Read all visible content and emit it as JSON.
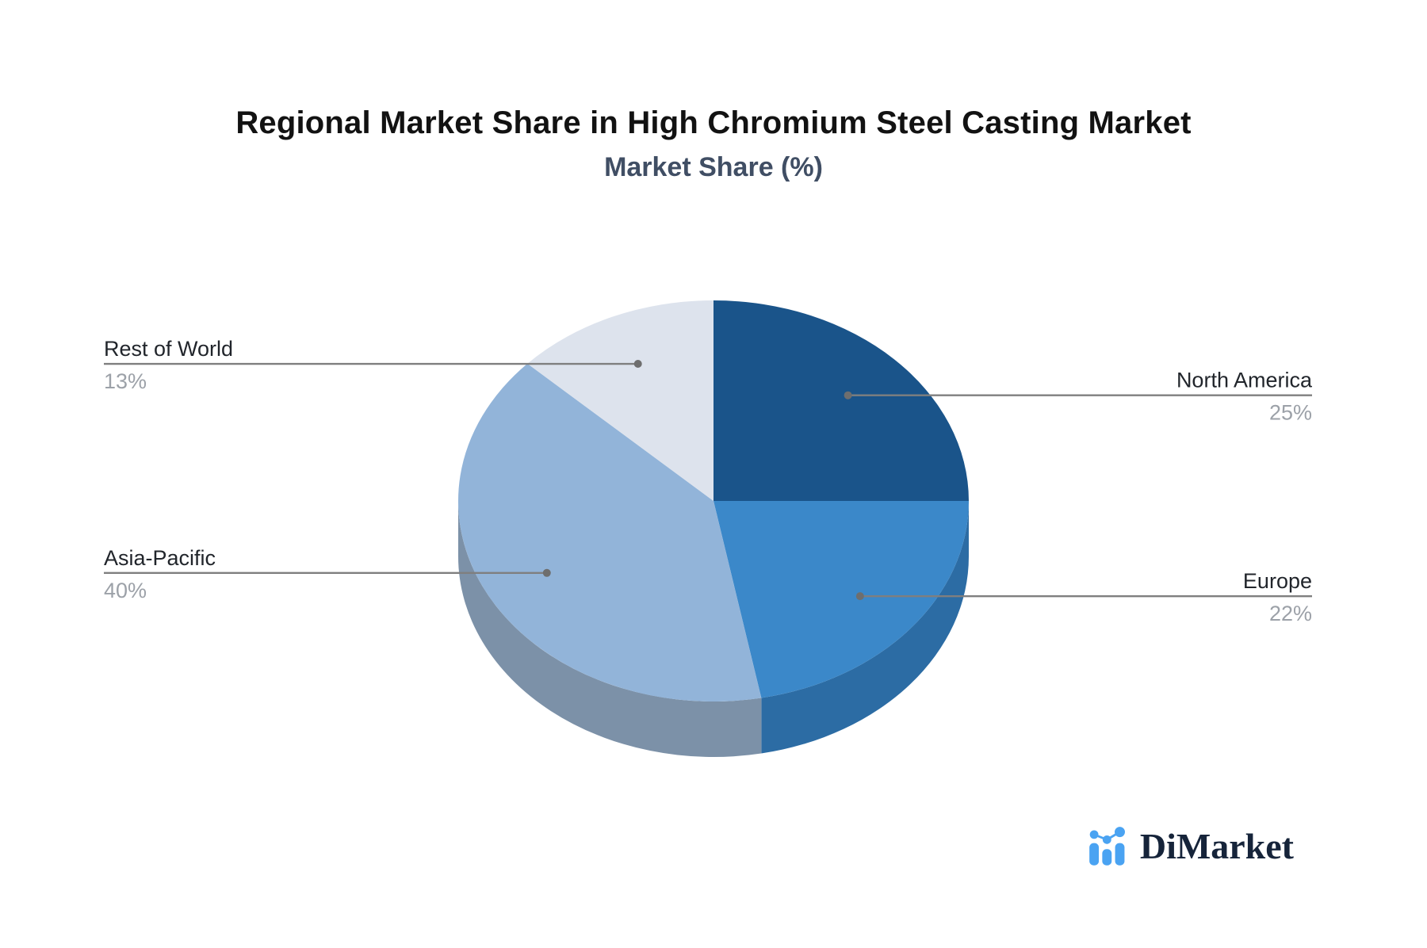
{
  "chart_data": {
    "type": "pie",
    "title": "Regional Market Share in High Chromium Steel Casting Market",
    "subtitle": "Market Share (%)",
    "unit": "%",
    "direction": "clockwise",
    "start_angle_deg": 0,
    "style_3d": true,
    "legend_position": "none",
    "title_color": "#121212",
    "subtitle_color": "#404E64",
    "label_color": "#21252B",
    "pct_color": "#9CA1A8",
    "leader_line_color": "#7F7F7F",
    "leader_dot_color": "#6E6E6E",
    "slices": [
      {
        "label": "North America",
        "value": 25,
        "pct_label": "25%",
        "color": "#1A548A",
        "side_color": "#17497A"
      },
      {
        "label": "Europe",
        "value": 22,
        "pct_label": "22%",
        "color": "#3B88C9",
        "side_color": "#2C6CA4"
      },
      {
        "label": "Asia-Pacific",
        "value": 40,
        "pct_label": "40%",
        "color": "#92B4D9",
        "side_color": "#7C91A8"
      },
      {
        "label": "Rest of World",
        "value": 13,
        "pct_label": "13%",
        "color": "#DDE3ED",
        "side_color": "#BCC2CF"
      }
    ]
  },
  "branding": {
    "logo_text": "DiMarket",
    "icon_color": "#4AA3F2",
    "text_color": "#16243A"
  }
}
